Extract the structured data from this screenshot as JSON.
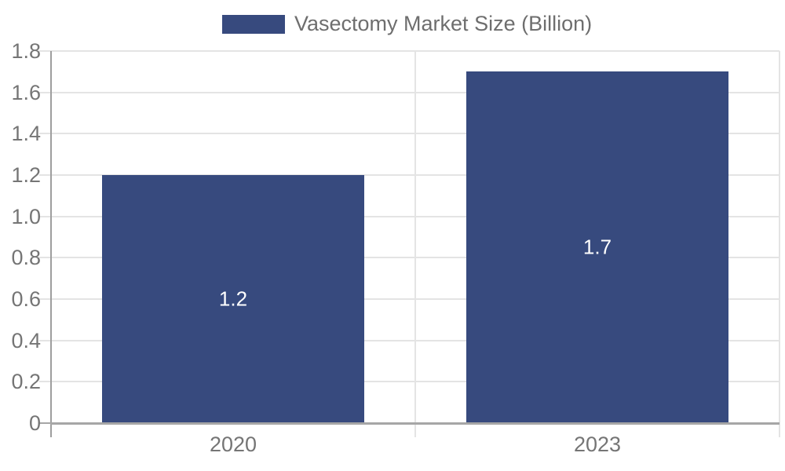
{
  "chart_data": {
    "type": "bar",
    "title": "Vasectomy Market Size (Billion)",
    "categories": [
      "2020",
      "2023"
    ],
    "values": [
      1.2,
      1.7
    ],
    "value_labels": [
      "1.2",
      "1.7"
    ],
    "ylim": [
      0,
      1.8
    ],
    "yticks": [
      0,
      0.2,
      0.4,
      0.6,
      0.8,
      1.0,
      1.2,
      1.4,
      1.6,
      1.8
    ],
    "ytick_labels": [
      "0",
      "0.2",
      "0.4",
      "0.6",
      "0.8",
      "1.0",
      "1.2",
      "1.4",
      "1.6",
      "1.8"
    ],
    "legend_position": "top",
    "grid": true,
    "colors": {
      "bar": "#374A7E",
      "value_label": "#FFFFFF",
      "axis_text": "#757575",
      "legend_text": "#6E6E6E",
      "gridline": "#E4E4E4",
      "axis_line": "#9E9E9E",
      "baseline": "#A6A6A6",
      "background": "#FFFFFF"
    }
  }
}
